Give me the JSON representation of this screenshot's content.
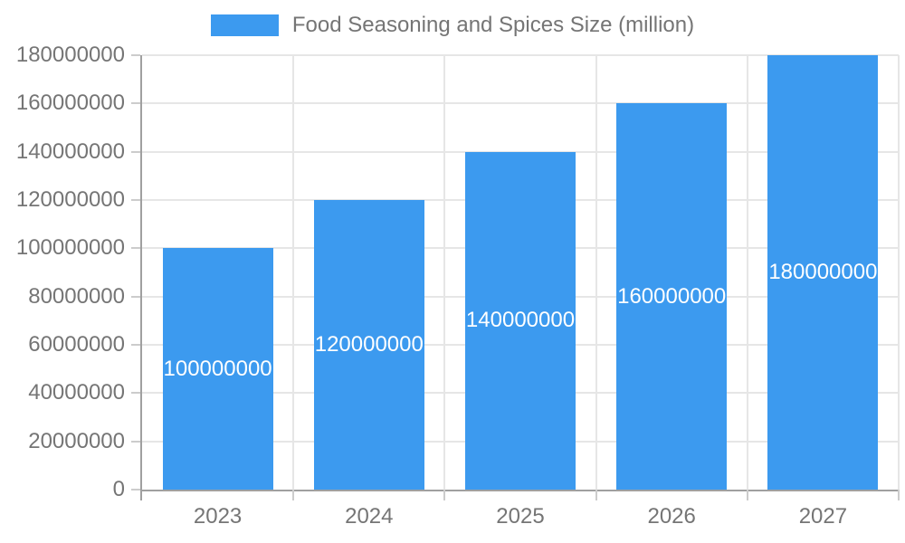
{
  "legend": {
    "items": [
      {
        "label": "Food Seasoning and Spices Size (million)"
      }
    ]
  },
  "chart_data": {
    "type": "bar",
    "title": "Food Seasoning and Spices Size (million)",
    "categories": [
      "2023",
      "2024",
      "2025",
      "2026",
      "2027"
    ],
    "values": [
      100000000,
      120000000,
      140000000,
      160000000,
      180000000
    ],
    "value_labels": [
      "100000000",
      "120000000",
      "140000000",
      "160000000",
      "180000000"
    ],
    "y_tick_labels": [
      "0",
      "20000000",
      "40000000",
      "60000000",
      "80000000",
      "100000000",
      "120000000",
      "140000000",
      "160000000",
      "180000000"
    ],
    "xlabel": "",
    "ylabel": "",
    "ylim": [
      0,
      180000000
    ],
    "ytick_step": 20000000,
    "grid": true,
    "legend_position": "top",
    "colors": {
      "bar": "#3C9AEF",
      "axis_line": "#a0a0a0",
      "gridline": "#e6e6e6",
      "tick": "#cccccc",
      "axis_text": "#757575",
      "legend_text": "#757575",
      "value_text": "#ffffff"
    }
  }
}
